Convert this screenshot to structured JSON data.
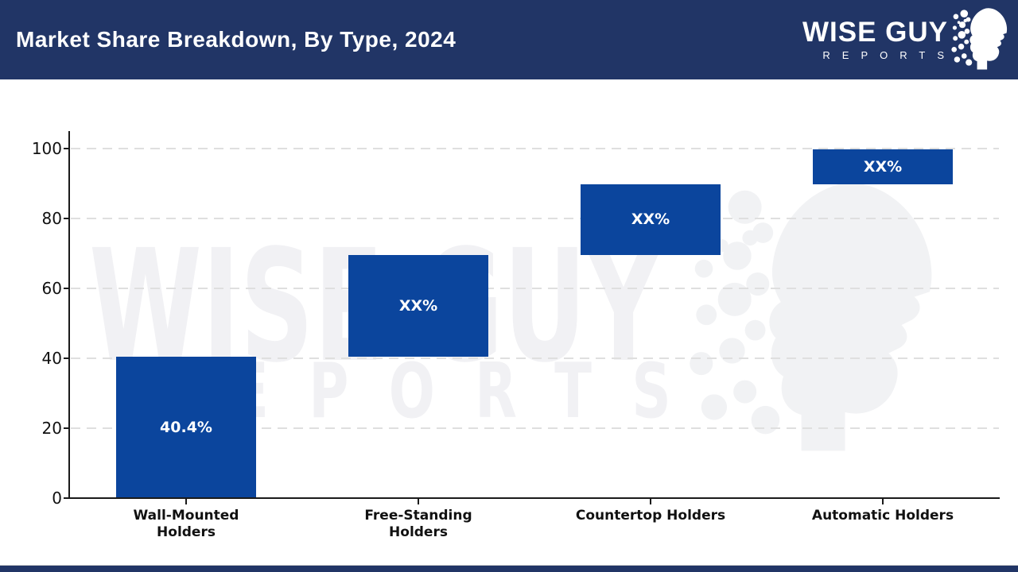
{
  "header": {
    "title": "Market Share Breakdown, By Type, 2024",
    "logo": {
      "line1": "WISE GUY",
      "line2": "REPORTS"
    }
  },
  "watermark": {
    "line1": "WISE GUY",
    "line2": "REPORTS"
  },
  "chart_data": {
    "type": "bar",
    "subtype": "waterfall",
    "title": "Market Share Breakdown, By Type, 2024",
    "categories": [
      "Wall-Mounted\nHolders",
      "Free-Standing\nHolders",
      "Countertop Holders",
      "Automatic Holders"
    ],
    "segments": [
      {
        "category": "Wall-Mounted Holders",
        "start": 0,
        "end": 40.4,
        "label": "40.4%"
      },
      {
        "category": "Free-Standing Holders",
        "start": 40.4,
        "end": 69.6,
        "label": "XX%"
      },
      {
        "category": "Countertop Holders",
        "start": 69.6,
        "end": 89.8,
        "label": "XX%"
      },
      {
        "category": "Automatic Holders",
        "start": 89.8,
        "end": 99.8,
        "label": "XX%"
      }
    ],
    "yticks": [
      0,
      20,
      40,
      60,
      80,
      100
    ],
    "ylim": [
      0,
      105
    ],
    "xlabel": "",
    "ylabel": "",
    "grid": "dashed-horizontal",
    "legend": "none"
  },
  "colors": {
    "header_bg": "#213566",
    "bar": "#0b459d",
    "grid": "#dfdfdf",
    "axis": "#1a1a1a",
    "tick_text": "#111111",
    "value_label": "#ffffff",
    "watermark": "#f1f1f4"
  }
}
